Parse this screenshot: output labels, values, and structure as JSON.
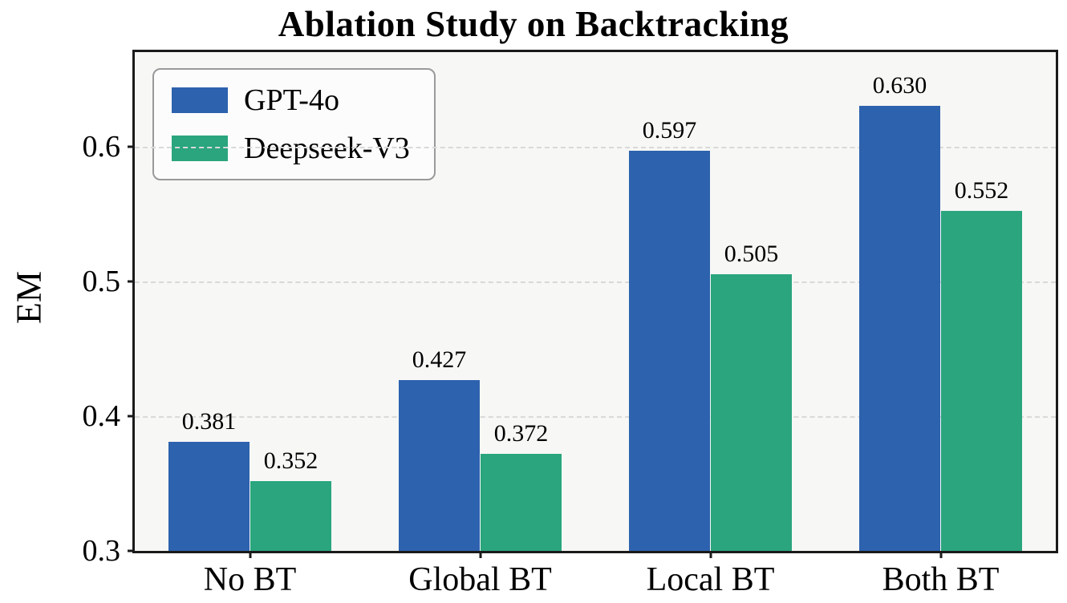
{
  "chart_data": {
    "type": "bar",
    "title": "Ablation Study on Backtracking",
    "xlabel": "",
    "ylabel": "EM",
    "categories": [
      "No BT",
      "Global BT",
      "Local BT",
      "Both BT"
    ],
    "series": [
      {
        "name": "GPT-4o",
        "color": "#2d62ae",
        "values": [
          0.381,
          0.427,
          0.597,
          0.63
        ]
      },
      {
        "name": "Deepseek-V3",
        "color": "#2aa57e",
        "values": [
          0.352,
          0.372,
          0.505,
          0.552
        ]
      }
    ],
    "ylim": [
      0.3,
      0.67
    ],
    "yticks": [
      0.3,
      0.4,
      0.5,
      0.6
    ],
    "grid": true,
    "grid_style": "dashed",
    "legend_position": "upper left",
    "value_label_decimals": 3
  }
}
